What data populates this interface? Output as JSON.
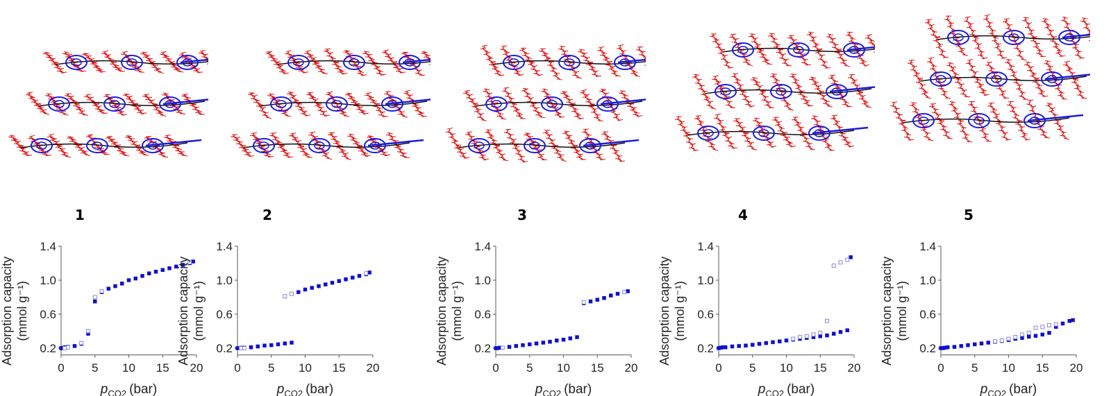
{
  "panels": [
    "1",
    "2",
    "3",
    "4",
    "5"
  ],
  "colors": {
    "alkyl": "#e01010",
    "core": "#1a1ae0",
    "backbone": "#111111",
    "marker": "#1010d0"
  },
  "chart_data": [
    {
      "type": "scatter",
      "panel": "1",
      "ylabel": "Adsorption capacity",
      "ylabel_unit": "(mmol g⁻¹)",
      "xlabel_var": "p",
      "xlabel_sub": "CO2",
      "xlabel_unit": "(bar)",
      "xlim": [
        0,
        20
      ],
      "ylim": [
        0.12,
        1.4
      ],
      "xticks": [
        0,
        5,
        10,
        15,
        20
      ],
      "yticks": [
        0.2,
        0.6,
        1.0,
        1.4
      ],
      "series": [
        {
          "marker": "filled",
          "points": [
            [
              0,
              0.2
            ],
            [
              0.2,
              0.2
            ],
            [
              0.4,
              0.205
            ],
            [
              0.6,
              0.21
            ],
            [
              0.8,
              0.21
            ],
            [
              1,
              0.215
            ],
            [
              2,
              0.225
            ],
            [
              3,
              0.25
            ],
            [
              4,
              0.37
            ],
            [
              5,
              0.75
            ],
            [
              6,
              0.86
            ],
            [
              7,
              0.9
            ],
            [
              8,
              0.93
            ],
            [
              9,
              0.96
            ],
            [
              10,
              1.0
            ],
            [
              11,
              1.02
            ],
            [
              12,
              1.05
            ],
            [
              13,
              1.08
            ],
            [
              14,
              1.1
            ],
            [
              15,
              1.12
            ],
            [
              16,
              1.14
            ],
            [
              17,
              1.16
            ],
            [
              18,
              1.18
            ],
            [
              19,
              1.2
            ],
            [
              19.5,
              1.22
            ]
          ]
        },
        {
          "marker": "open",
          "points": [
            [
              19,
              1.21
            ],
            [
              6,
              0.87
            ],
            [
              5,
              0.8
            ],
            [
              4,
              0.4
            ],
            [
              3,
              0.26
            ],
            [
              1,
              0.21
            ],
            [
              0.5,
              0.2
            ]
          ]
        }
      ]
    },
    {
      "type": "scatter",
      "panel": "2",
      "ylabel": "Adsorption capacity",
      "ylabel_unit": "(mmol g⁻¹)",
      "xlabel_var": "p",
      "xlabel_sub": "CO2",
      "xlabel_unit": "(bar)",
      "xlim": [
        0,
        20
      ],
      "ylim": [
        0.12,
        1.4
      ],
      "xticks": [
        0,
        5,
        10,
        15,
        20
      ],
      "yticks": [
        0.2,
        0.6,
        1.0,
        1.4
      ],
      "series": [
        {
          "marker": "filled",
          "points": [
            [
              0,
              0.2
            ],
            [
              0.3,
              0.2
            ],
            [
              0.6,
              0.205
            ],
            [
              1,
              0.205
            ],
            [
              2,
              0.21
            ],
            [
              3,
              0.22
            ],
            [
              4,
              0.23
            ],
            [
              5,
              0.235
            ],
            [
              6,
              0.245
            ],
            [
              7,
              0.255
            ],
            [
              8,
              0.265
            ],
            [
              9,
              0.86
            ],
            [
              10,
              0.89
            ],
            [
              11,
              0.91
            ],
            [
              12,
              0.93
            ],
            [
              13,
              0.95
            ],
            [
              14,
              0.97
            ],
            [
              15,
              0.99
            ],
            [
              16,
              1.01
            ],
            [
              17,
              1.03
            ],
            [
              18,
              1.05
            ],
            [
              19,
              1.07
            ],
            [
              19.5,
              1.09
            ]
          ]
        },
        {
          "marker": "open",
          "points": [
            [
              19,
              1.08
            ],
            [
              8,
              0.84
            ],
            [
              7,
              0.81
            ],
            [
              1,
              0.2
            ],
            [
              0.5,
              0.2
            ]
          ]
        }
      ]
    },
    {
      "type": "scatter",
      "panel": "3",
      "ylabel": "Adsorption capacity",
      "ylabel_unit": "(mmol g⁻¹)",
      "xlabel_var": "p",
      "xlabel_sub": "CO2",
      "xlabel_unit": "(bar)",
      "xlim": [
        0,
        20
      ],
      "ylim": [
        0.12,
        1.4
      ],
      "xticks": [
        0,
        5,
        10,
        15,
        20
      ],
      "yticks": [
        0.2,
        0.6,
        1.0,
        1.4
      ],
      "series": [
        {
          "marker": "filled",
          "points": [
            [
              0,
              0.2
            ],
            [
              0.3,
              0.2
            ],
            [
              0.6,
              0.205
            ],
            [
              1,
              0.205
            ],
            [
              2,
              0.215
            ],
            [
              3,
              0.225
            ],
            [
              4,
              0.235
            ],
            [
              5,
              0.245
            ],
            [
              6,
              0.255
            ],
            [
              7,
              0.265
            ],
            [
              8,
              0.275
            ],
            [
              9,
              0.29
            ],
            [
              10,
              0.3
            ],
            [
              11,
              0.315
            ],
            [
              12,
              0.33
            ],
            [
              13,
              0.73
            ],
            [
              14,
              0.75
            ],
            [
              15,
              0.77
            ],
            [
              16,
              0.79
            ],
            [
              17,
              0.82
            ],
            [
              18,
              0.84
            ],
            [
              19,
              0.86
            ],
            [
              19.5,
              0.87
            ]
          ]
        },
        {
          "marker": "open",
          "points": [
            [
              19,
              0.86
            ],
            [
              13,
              0.74
            ],
            [
              1,
              0.205
            ]
          ]
        }
      ]
    },
    {
      "type": "scatter",
      "panel": "4",
      "ylabel": "Adsorption capacity",
      "ylabel_unit": "(mmol g⁻¹)",
      "xlabel_var": "p",
      "xlabel_sub": "CO2",
      "xlabel_unit": "(bar)",
      "xlim": [
        0,
        20
      ],
      "ylim": [
        0.12,
        1.4
      ],
      "xticks": [
        0,
        5,
        10,
        15,
        20
      ],
      "yticks": [
        0.2,
        0.6,
        1.0,
        1.4
      ],
      "series": [
        {
          "marker": "filled",
          "points": [
            [
              0,
              0.2
            ],
            [
              0.3,
              0.205
            ],
            [
              0.6,
              0.21
            ],
            [
              1,
              0.21
            ],
            [
              2,
              0.22
            ],
            [
              3,
              0.225
            ],
            [
              4,
              0.23
            ],
            [
              5,
              0.24
            ],
            [
              6,
              0.25
            ],
            [
              7,
              0.26
            ],
            [
              8,
              0.27
            ],
            [
              9,
              0.28
            ],
            [
              10,
              0.29
            ],
            [
              11,
              0.3
            ],
            [
              12,
              0.31
            ],
            [
              13,
              0.32
            ],
            [
              14,
              0.33
            ],
            [
              15,
              0.34
            ],
            [
              16,
              0.35
            ],
            [
              17,
              0.37
            ],
            [
              18,
              0.39
            ],
            [
              19,
              0.41
            ],
            [
              19.5,
              1.27
            ]
          ]
        },
        {
          "marker": "open",
          "points": [
            [
              19,
              1.24
            ],
            [
              18,
              1.21
            ],
            [
              17,
              1.17
            ],
            [
              16,
              0.52
            ],
            [
              15,
              0.38
            ],
            [
              14,
              0.36
            ],
            [
              13,
              0.34
            ],
            [
              12,
              0.33
            ],
            [
              11,
              0.31
            ]
          ]
        }
      ]
    },
    {
      "type": "scatter",
      "panel": "5",
      "ylabel": "Adsorption capacity",
      "ylabel_unit": "(mmol g⁻¹)",
      "xlabel_var": "p",
      "xlabel_sub": "CO2",
      "xlabel_unit": "(bar)",
      "xlim": [
        0,
        20
      ],
      "ylim": [
        0.12,
        1.4
      ],
      "xticks": [
        0,
        5,
        10,
        15,
        20
      ],
      "yticks": [
        0.2,
        0.6,
        1.0,
        1.4
      ],
      "series": [
        {
          "marker": "filled",
          "points": [
            [
              0,
              0.2
            ],
            [
              0.3,
              0.2
            ],
            [
              0.6,
              0.205
            ],
            [
              1,
              0.21
            ],
            [
              2,
              0.215
            ],
            [
              3,
              0.225
            ],
            [
              4,
              0.235
            ],
            [
              5,
              0.245
            ],
            [
              6,
              0.255
            ],
            [
              7,
              0.265
            ],
            [
              8,
              0.275
            ],
            [
              9,
              0.285
            ],
            [
              10,
              0.295
            ],
            [
              11,
              0.31
            ],
            [
              12,
              0.32
            ],
            [
              13,
              0.335
            ],
            [
              14,
              0.345
            ],
            [
              15,
              0.36
            ],
            [
              16,
              0.38
            ],
            [
              17,
              0.45
            ],
            [
              18,
              0.49
            ],
            [
              19,
              0.52
            ],
            [
              19.5,
              0.53
            ]
          ]
        },
        {
          "marker": "open",
          "points": [
            [
              17,
              0.48
            ],
            [
              16,
              0.47
            ],
            [
              15,
              0.45
            ],
            [
              14,
              0.44
            ],
            [
              13,
              0.38
            ],
            [
              12,
              0.36
            ],
            [
              11,
              0.33
            ],
            [
              10,
              0.31
            ],
            [
              9,
              0.29
            ],
            [
              8,
              0.28
            ]
          ]
        }
      ]
    }
  ]
}
